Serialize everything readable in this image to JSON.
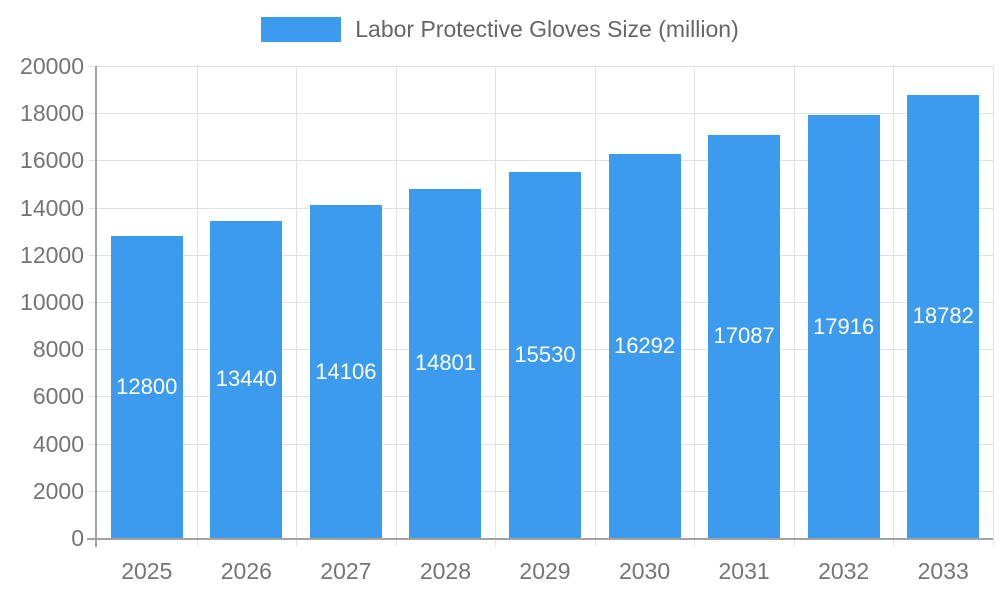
{
  "chart_data": {
    "type": "bar",
    "title": "Labor Protective Gloves Size (million)",
    "categories": [
      "2025",
      "2026",
      "2027",
      "2028",
      "2029",
      "2030",
      "2031",
      "2032",
      "2033"
    ],
    "values": [
      12800,
      13440,
      14106,
      14801,
      15530,
      16292,
      17087,
      17916,
      18782
    ],
    "series": [
      {
        "name": "Labor Protective Gloves Size (million)",
        "values": [
          12800,
          13440,
          14106,
          14801,
          15530,
          16292,
          17087,
          17916,
          18782
        ]
      }
    ],
    "xlabel": "",
    "ylabel": "",
    "ylim": [
      0,
      20000
    ],
    "ytick_step": 2000,
    "ytick_labels": [
      "0",
      "2000",
      "4000",
      "6000",
      "8000",
      "10000",
      "12000",
      "14000",
      "16000",
      "18000",
      "20000"
    ],
    "grid": true,
    "legend_position": "top-center",
    "bar_labels_visible": true,
    "colors": {
      "bar": "#3D9BEE",
      "bar_label": "#ffffff",
      "grid": "#e2e2e2",
      "axis": "#a3a3a3",
      "tick_label": "#757575",
      "legend_text": "#666666",
      "background": "#ffffff"
    }
  }
}
